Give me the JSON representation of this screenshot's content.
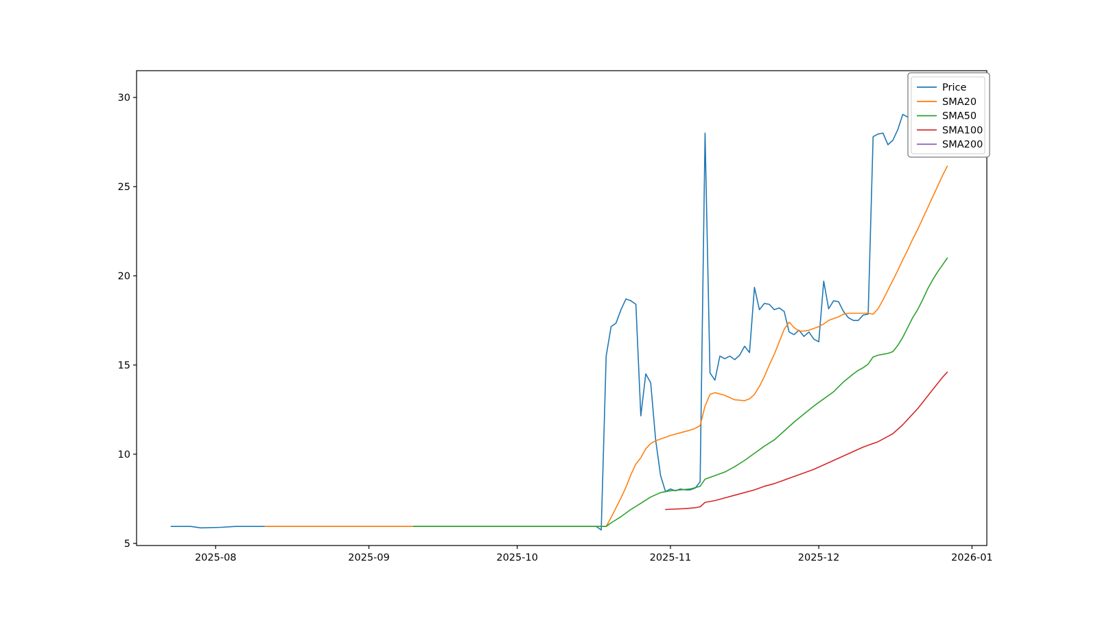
{
  "figure": {
    "background": "#ffffff",
    "axes_color": "#000000"
  },
  "chart_data": {
    "type": "line",
    "title": "",
    "xlabel": "",
    "ylabel": "",
    "grid": false,
    "background": "#ffffff",
    "legend": {
      "position": "upper right",
      "entries": [
        "Price",
        "SMA20",
        "SMA50",
        "SMA100",
        "SMA200"
      ]
    },
    "x_axis": {
      "tick_labels": [
        "2025-08",
        "2025-09",
        "2025-10",
        "2025-11",
        "2025-12",
        "2026-01"
      ],
      "tick_dates": [
        "2025-08-01",
        "2025-09-01",
        "2025-10-01",
        "2025-11-01",
        "2025-12-01",
        "2026-01-01"
      ],
      "xlim": [
        "2025-07-16",
        "2026-01-04"
      ]
    },
    "y_axis": {
      "ticks": [
        5,
        10,
        15,
        20,
        25,
        30
      ],
      "ylim": [
        4.88,
        31.5
      ]
    },
    "series": [
      {
        "name": "Price",
        "color": "#1f77b4",
        "points": [
          [
            "2025-07-23",
            5.95
          ],
          [
            "2025-07-27",
            5.95
          ],
          [
            "2025-07-29",
            5.87
          ],
          [
            "2025-08-02",
            5.9
          ],
          [
            "2025-08-05",
            5.95
          ],
          [
            "2025-09-01",
            5.95
          ],
          [
            "2025-10-01",
            5.95
          ],
          [
            "2025-10-17",
            5.95
          ],
          [
            "2025-10-18",
            5.75
          ],
          [
            "2025-10-19",
            15.5
          ],
          [
            "2025-10-20",
            17.15
          ],
          [
            "2025-10-21",
            17.35
          ],
          [
            "2025-10-22",
            18.1
          ],
          [
            "2025-10-23",
            18.7
          ],
          [
            "2025-10-24",
            18.6
          ],
          [
            "2025-10-25",
            18.4
          ],
          [
            "2025-10-26",
            12.15
          ],
          [
            "2025-10-27",
            14.5
          ],
          [
            "2025-10-28",
            14.0
          ],
          [
            "2025-10-29",
            10.8
          ],
          [
            "2025-10-30",
            8.8
          ],
          [
            "2025-10-31",
            7.9
          ],
          [
            "2025-11-01",
            8.05
          ],
          [
            "2025-11-02",
            7.95
          ],
          [
            "2025-11-03",
            8.05
          ],
          [
            "2025-11-04",
            8.0
          ],
          [
            "2025-11-05",
            8.0
          ],
          [
            "2025-11-06",
            8.1
          ],
          [
            "2025-11-07",
            8.45
          ],
          [
            "2025-11-08",
            28.0
          ],
          [
            "2025-11-09",
            14.55
          ],
          [
            "2025-11-10",
            14.15
          ],
          [
            "2025-11-11",
            15.5
          ],
          [
            "2025-11-12",
            15.35
          ],
          [
            "2025-11-13",
            15.5
          ],
          [
            "2025-11-14",
            15.3
          ],
          [
            "2025-11-15",
            15.55
          ],
          [
            "2025-11-16",
            16.05
          ],
          [
            "2025-11-17",
            15.7
          ],
          [
            "2025-11-18",
            19.35
          ],
          [
            "2025-11-19",
            18.1
          ],
          [
            "2025-11-20",
            18.45
          ],
          [
            "2025-11-21",
            18.4
          ],
          [
            "2025-11-22",
            18.1
          ],
          [
            "2025-11-23",
            18.2
          ],
          [
            "2025-11-24",
            18.0
          ],
          [
            "2025-11-25",
            16.85
          ],
          [
            "2025-11-26",
            16.7
          ],
          [
            "2025-11-27",
            16.95
          ],
          [
            "2025-11-28",
            16.6
          ],
          [
            "2025-11-29",
            16.85
          ],
          [
            "2025-11-30",
            16.45
          ],
          [
            "2025-12-01",
            16.3
          ],
          [
            "2025-12-02",
            19.7
          ],
          [
            "2025-12-03",
            18.15
          ],
          [
            "2025-12-04",
            18.6
          ],
          [
            "2025-12-05",
            18.55
          ],
          [
            "2025-12-06",
            18.0
          ],
          [
            "2025-12-07",
            17.65
          ],
          [
            "2025-12-08",
            17.5
          ],
          [
            "2025-12-09",
            17.5
          ],
          [
            "2025-12-10",
            17.8
          ],
          [
            "2025-12-11",
            17.85
          ],
          [
            "2025-12-12",
            27.8
          ],
          [
            "2025-12-13",
            27.95
          ],
          [
            "2025-12-14",
            28.0
          ],
          [
            "2025-12-15",
            27.35
          ],
          [
            "2025-12-16",
            27.6
          ],
          [
            "2025-12-17",
            28.2
          ],
          [
            "2025-12-18",
            29.05
          ],
          [
            "2025-12-19",
            28.9
          ]
        ]
      },
      {
        "name": "SMA20",
        "color": "#ff7f0e",
        "points": [
          [
            "2025-08-11",
            5.95
          ],
          [
            "2025-09-01",
            5.95
          ],
          [
            "2025-10-01",
            5.95
          ],
          [
            "2025-10-19",
            5.95
          ],
          [
            "2025-10-20",
            6.45
          ],
          [
            "2025-10-21",
            7.0
          ],
          [
            "2025-10-22",
            7.55
          ],
          [
            "2025-10-23",
            8.15
          ],
          [
            "2025-10-24",
            8.85
          ],
          [
            "2025-10-25",
            9.45
          ],
          [
            "2025-10-26",
            9.8
          ],
          [
            "2025-10-27",
            10.3
          ],
          [
            "2025-10-28",
            10.6
          ],
          [
            "2025-10-29",
            10.75
          ],
          [
            "2025-10-30",
            10.85
          ],
          [
            "2025-10-31",
            10.95
          ],
          [
            "2025-11-01",
            11.05
          ],
          [
            "2025-11-03",
            11.2
          ],
          [
            "2025-11-05",
            11.35
          ],
          [
            "2025-11-06",
            11.45
          ],
          [
            "2025-11-07",
            11.6
          ],
          [
            "2025-11-08",
            12.7
          ],
          [
            "2025-11-09",
            13.35
          ],
          [
            "2025-11-10",
            13.45
          ],
          [
            "2025-11-12",
            13.3
          ],
          [
            "2025-11-14",
            13.05
          ],
          [
            "2025-11-16",
            13.0
          ],
          [
            "2025-11-17",
            13.1
          ],
          [
            "2025-11-18",
            13.35
          ],
          [
            "2025-11-19",
            13.8
          ],
          [
            "2025-11-20",
            14.35
          ],
          [
            "2025-11-21",
            15.0
          ],
          [
            "2025-11-22",
            15.6
          ],
          [
            "2025-11-23",
            16.3
          ],
          [
            "2025-11-24",
            17.0
          ],
          [
            "2025-11-25",
            17.4
          ],
          [
            "2025-11-26",
            17.1
          ],
          [
            "2025-11-27",
            16.9
          ],
          [
            "2025-11-28",
            16.9
          ],
          [
            "2025-11-29",
            16.95
          ],
          [
            "2025-11-30",
            17.05
          ],
          [
            "2025-12-01",
            17.15
          ],
          [
            "2025-12-02",
            17.3
          ],
          [
            "2025-12-03",
            17.5
          ],
          [
            "2025-12-04",
            17.6
          ],
          [
            "2025-12-05",
            17.7
          ],
          [
            "2025-12-06",
            17.85
          ],
          [
            "2025-12-07",
            17.9
          ],
          [
            "2025-12-09",
            17.9
          ],
          [
            "2025-12-11",
            17.9
          ],
          [
            "2025-12-12",
            17.85
          ],
          [
            "2025-12-13",
            18.15
          ],
          [
            "2025-12-14",
            18.65
          ],
          [
            "2025-12-15",
            19.2
          ],
          [
            "2025-12-16",
            19.75
          ],
          [
            "2025-12-17",
            20.3
          ],
          [
            "2025-12-18",
            20.9
          ],
          [
            "2025-12-19",
            21.45
          ],
          [
            "2025-12-20",
            22.05
          ],
          [
            "2025-12-21",
            22.6
          ],
          [
            "2025-12-22",
            23.2
          ],
          [
            "2025-12-23",
            23.8
          ],
          [
            "2025-12-24",
            24.4
          ],
          [
            "2025-12-25",
            25.0
          ],
          [
            "2025-12-26",
            25.6
          ],
          [
            "2025-12-27",
            26.15
          ]
        ]
      },
      {
        "name": "SMA50",
        "color": "#2ca02c",
        "points": [
          [
            "2025-09-10",
            5.95
          ],
          [
            "2025-10-01",
            5.95
          ],
          [
            "2025-10-19",
            5.95
          ],
          [
            "2025-10-20",
            6.15
          ],
          [
            "2025-10-22",
            6.5
          ],
          [
            "2025-10-24",
            6.9
          ],
          [
            "2025-10-26",
            7.25
          ],
          [
            "2025-10-28",
            7.6
          ],
          [
            "2025-10-30",
            7.85
          ],
          [
            "2025-11-01",
            7.95
          ],
          [
            "2025-11-03",
            8.0
          ],
          [
            "2025-11-05",
            8.05
          ],
          [
            "2025-11-07",
            8.2
          ],
          [
            "2025-11-08",
            8.6
          ],
          [
            "2025-11-10",
            8.8
          ],
          [
            "2025-11-12",
            9.0
          ],
          [
            "2025-11-14",
            9.3
          ],
          [
            "2025-11-16",
            9.65
          ],
          [
            "2025-11-18",
            10.05
          ],
          [
            "2025-11-20",
            10.45
          ],
          [
            "2025-11-22",
            10.8
          ],
          [
            "2025-11-24",
            11.3
          ],
          [
            "2025-11-26",
            11.8
          ],
          [
            "2025-11-28",
            12.25
          ],
          [
            "2025-11-30",
            12.7
          ],
          [
            "2025-12-02",
            13.1
          ],
          [
            "2025-12-04",
            13.5
          ],
          [
            "2025-12-06",
            14.05
          ],
          [
            "2025-12-08",
            14.5
          ],
          [
            "2025-12-09",
            14.7
          ],
          [
            "2025-12-10",
            14.85
          ],
          [
            "2025-12-11",
            15.05
          ],
          [
            "2025-12-12",
            15.45
          ],
          [
            "2025-12-13",
            15.55
          ],
          [
            "2025-12-14",
            15.6
          ],
          [
            "2025-12-15",
            15.65
          ],
          [
            "2025-12-16",
            15.75
          ],
          [
            "2025-12-17",
            16.1
          ],
          [
            "2025-12-18",
            16.55
          ],
          [
            "2025-12-19",
            17.1
          ],
          [
            "2025-12-20",
            17.65
          ],
          [
            "2025-12-21",
            18.1
          ],
          [
            "2025-12-22",
            18.65
          ],
          [
            "2025-12-23",
            19.25
          ],
          [
            "2025-12-24",
            19.75
          ],
          [
            "2025-12-25",
            20.2
          ],
          [
            "2025-12-26",
            20.6
          ],
          [
            "2025-12-27",
            21.0
          ]
        ]
      },
      {
        "name": "SMA100",
        "color": "#d62728",
        "points": [
          [
            "2025-10-31",
            6.9
          ],
          [
            "2025-11-04",
            6.95
          ],
          [
            "2025-11-06",
            7.0
          ],
          [
            "2025-11-07",
            7.05
          ],
          [
            "2025-11-08",
            7.3
          ],
          [
            "2025-11-10",
            7.4
          ],
          [
            "2025-11-12",
            7.55
          ],
          [
            "2025-11-14",
            7.7
          ],
          [
            "2025-11-16",
            7.85
          ],
          [
            "2025-11-18",
            8.0
          ],
          [
            "2025-11-20",
            8.2
          ],
          [
            "2025-11-22",
            8.35
          ],
          [
            "2025-11-24",
            8.55
          ],
          [
            "2025-11-26",
            8.75
          ],
          [
            "2025-11-28",
            8.95
          ],
          [
            "2025-11-30",
            9.15
          ],
          [
            "2025-12-02",
            9.4
          ],
          [
            "2025-12-04",
            9.65
          ],
          [
            "2025-12-06",
            9.9
          ],
          [
            "2025-12-08",
            10.15
          ],
          [
            "2025-12-10",
            10.4
          ],
          [
            "2025-12-11",
            10.5
          ],
          [
            "2025-12-13",
            10.7
          ],
          [
            "2025-12-15",
            11.0
          ],
          [
            "2025-12-16",
            11.15
          ],
          [
            "2025-12-17",
            11.4
          ],
          [
            "2025-12-18",
            11.65
          ],
          [
            "2025-12-19",
            11.95
          ],
          [
            "2025-12-20",
            12.25
          ],
          [
            "2025-12-21",
            12.55
          ],
          [
            "2025-12-22",
            12.9
          ],
          [
            "2025-12-23",
            13.25
          ],
          [
            "2025-12-24",
            13.6
          ],
          [
            "2025-12-25",
            13.95
          ],
          [
            "2025-12-26",
            14.3
          ],
          [
            "2025-12-27",
            14.6
          ]
        ]
      },
      {
        "name": "SMA200",
        "color": "#9467bd",
        "points": []
      }
    ]
  }
}
